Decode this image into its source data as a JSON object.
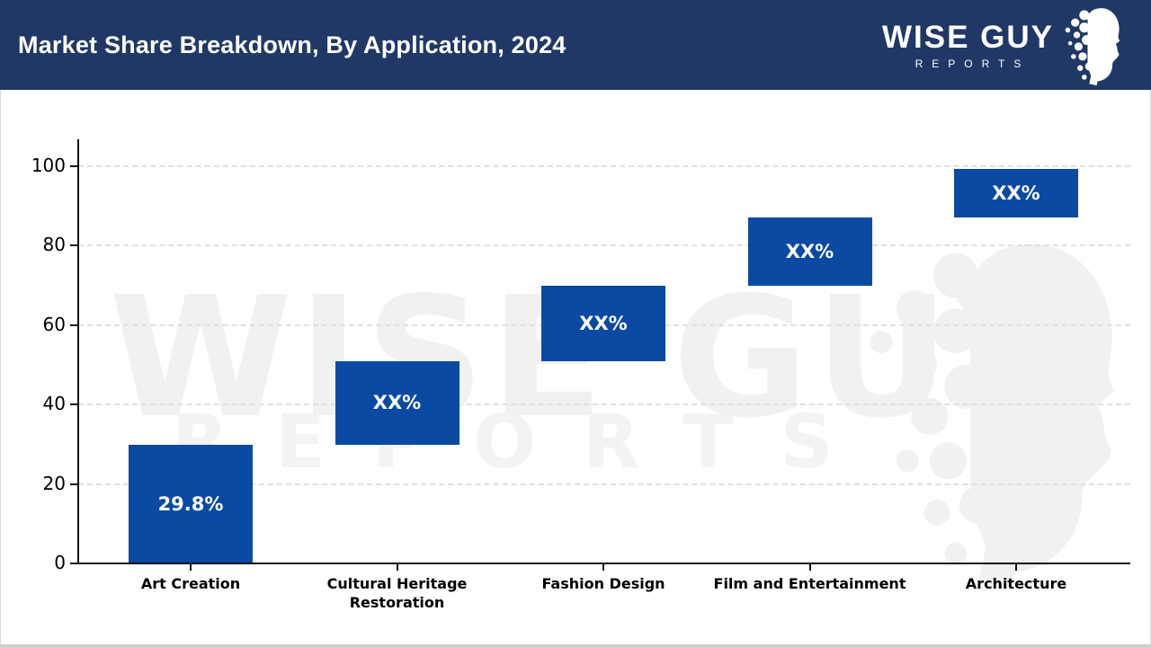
{
  "header": {
    "title": "Market Share Breakdown, By Application, 2024",
    "background_color": "#213866",
    "logo": {
      "line1": "WISE GUY",
      "line2": "REPORTS"
    }
  },
  "watermark": {
    "line1": "WISE GUY",
    "line2": "REPORTS"
  },
  "chart_data": {
    "type": "bar",
    "subtype": "waterfall",
    "title": "Market Share Breakdown, By Application, 2024",
    "xlabel": "",
    "ylabel": "",
    "ylim": [
      0,
      100
    ],
    "yticks": [
      0,
      20,
      40,
      60,
      80,
      100
    ],
    "grid": "horizontal-dashed",
    "legend": "none",
    "bar_color": "#0b4aa2",
    "value_label_color": "#ffffff",
    "categories": [
      "Art Creation",
      "Cultural Heritage Restoration",
      "Fashion Design",
      "Film and Entertainment",
      "Architecture"
    ],
    "segments": [
      {
        "category": "Art Creation",
        "start": 0,
        "end": 29.8,
        "label": "29.8%"
      },
      {
        "category": "Cultural Heritage Restoration",
        "start": 29.8,
        "end": 51,
        "label": "XX%"
      },
      {
        "category": "Fashion Design",
        "start": 51,
        "end": 70,
        "label": "XX%"
      },
      {
        "category": "Film and Entertainment",
        "start": 70,
        "end": 87,
        "label": "XX%"
      },
      {
        "category": "Architecture",
        "start": 87,
        "end": 99.3,
        "label": "XX%"
      }
    ]
  }
}
